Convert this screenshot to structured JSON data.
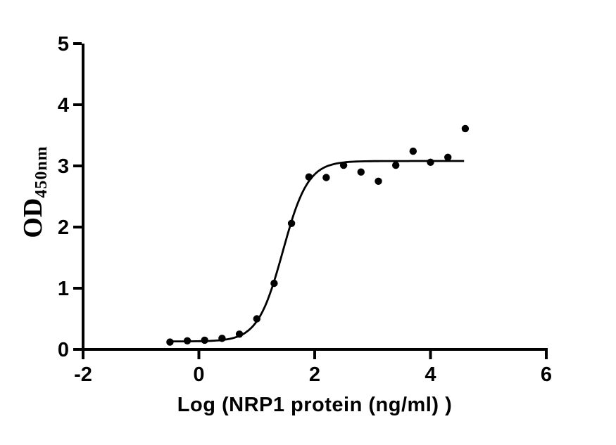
{
  "chart_data": {
    "type": "scatter",
    "title": "",
    "xlabel": "Log (NRP1 protein (ng/ml) )",
    "ylabel_base": "OD",
    "ylabel_sub": "450nm",
    "xlim": [
      -2,
      6
    ],
    "ylim": [
      0,
      5
    ],
    "x_ticks": [
      -2,
      0,
      2,
      4,
      6
    ],
    "y_ticks": [
      0,
      1,
      2,
      3,
      4,
      5
    ],
    "grid": false,
    "legend": false,
    "series": [
      {
        "x": [
          -0.5,
          -0.2,
          0.1,
          0.4,
          0.7,
          1.0,
          1.3,
          1.6,
          1.9,
          2.2,
          2.5,
          2.8,
          3.1,
          3.4,
          3.7,
          4.0,
          4.3,
          4.6
        ],
        "y": [
          0.12,
          0.14,
          0.15,
          0.18,
          0.25,
          0.5,
          1.08,
          2.06,
          2.82,
          2.81,
          3.01,
          2.9,
          2.75,
          3.01,
          3.24,
          3.06,
          3.14,
          3.61
        ]
      }
    ],
    "fit_curve": {
      "model": "4PL",
      "bottom": 0.13,
      "top": 3.08,
      "logEC50": 1.45,
      "hill": 2.0,
      "x_start": -0.5,
      "x_end": 4.61
    },
    "colors": {
      "points": "#000000",
      "curve": "#000000",
      "axis": "#000000",
      "background": "#ffffff"
    }
  }
}
